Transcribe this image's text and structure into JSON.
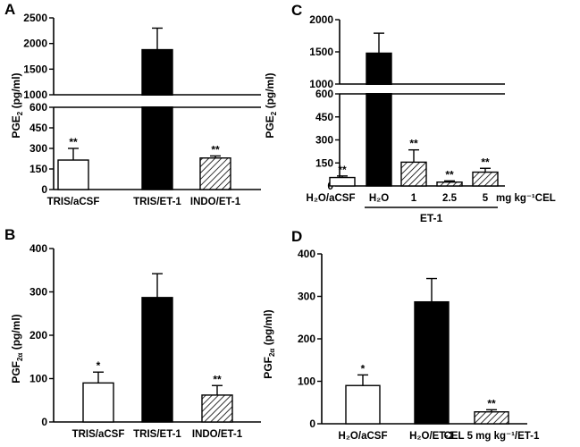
{
  "chart_data": [
    {
      "panel": "A",
      "type": "bar",
      "ylabel": "PGE",
      "ylabel_sub": "2",
      "ylabel_unit": " (pg/ml)",
      "y_axis_broken": true,
      "y_lower_ticks": [
        "0",
        "150",
        "300",
        "450",
        "600"
      ],
      "y_upper_ticks": [
        "1000",
        "1500",
        "2000",
        "2500"
      ],
      "categories": [
        "TRIS/aCSF",
        "TRIS/ET-1",
        "INDO/ET-1"
      ],
      "values": [
        215,
        1880,
        230
      ],
      "errors": [
        85,
        420,
        15
      ],
      "fills": [
        "white",
        "black",
        "hatched"
      ],
      "significance": [
        "**",
        "",
        "**"
      ]
    },
    {
      "panel": "B",
      "type": "bar",
      "ylabel": "PGF",
      "ylabel_sub": "2α",
      "ylabel_unit": " (pg/ml)",
      "ylim": [
        0,
        400
      ],
      "y_ticks": [
        "0",
        "100",
        "200",
        "300",
        "400"
      ],
      "categories": [
        "TRIS/aCSF",
        "TRIS/ET-1",
        "INDO/ET-1"
      ],
      "values": [
        90,
        287,
        62
      ],
      "errors": [
        25,
        55,
        22
      ],
      "fills": [
        "white",
        "black",
        "hatched"
      ],
      "significance": [
        "*",
        "",
        "**"
      ]
    },
    {
      "panel": "C",
      "type": "bar",
      "ylabel": "PGE",
      "ylabel_sub": "2",
      "ylabel_unit": " (pg/ml)",
      "y_axis_broken": true,
      "y_lower_ticks": [
        "0",
        "150",
        "300",
        "450",
        "600"
      ],
      "y_upper_ticks": [
        "1000",
        "1500",
        "2000"
      ],
      "categories": [
        "H₂O/aCSF",
        "H₂O",
        "1",
        "2.5",
        "5"
      ],
      "category_suffix": "mg kg⁻¹CEL",
      "group_label": "ET-1",
      "values": [
        55,
        1480,
        155,
        25,
        90
      ],
      "errors": [
        10,
        310,
        80,
        8,
        25
      ],
      "fills": [
        "white",
        "black",
        "hatched",
        "hatched",
        "hatched"
      ],
      "significance": [
        "**",
        "",
        "**",
        "**",
        "**"
      ]
    },
    {
      "panel": "D",
      "type": "bar",
      "ylabel": "PGF",
      "ylabel_sub": "2α",
      "ylabel_unit": " (pg/ml)",
      "ylim": [
        0,
        400
      ],
      "y_ticks": [
        "0",
        "100",
        "200",
        "300",
        "400"
      ],
      "categories": [
        "H₂O/aCSF",
        "H₂O/ET-1",
        "CEL 5 mg kg⁻¹/ET-1"
      ],
      "values": [
        90,
        287,
        28
      ],
      "errors": [
        25,
        55,
        5
      ],
      "fills": [
        "white",
        "black",
        "hatched"
      ],
      "significance": [
        "*",
        "",
        "**"
      ]
    }
  ]
}
